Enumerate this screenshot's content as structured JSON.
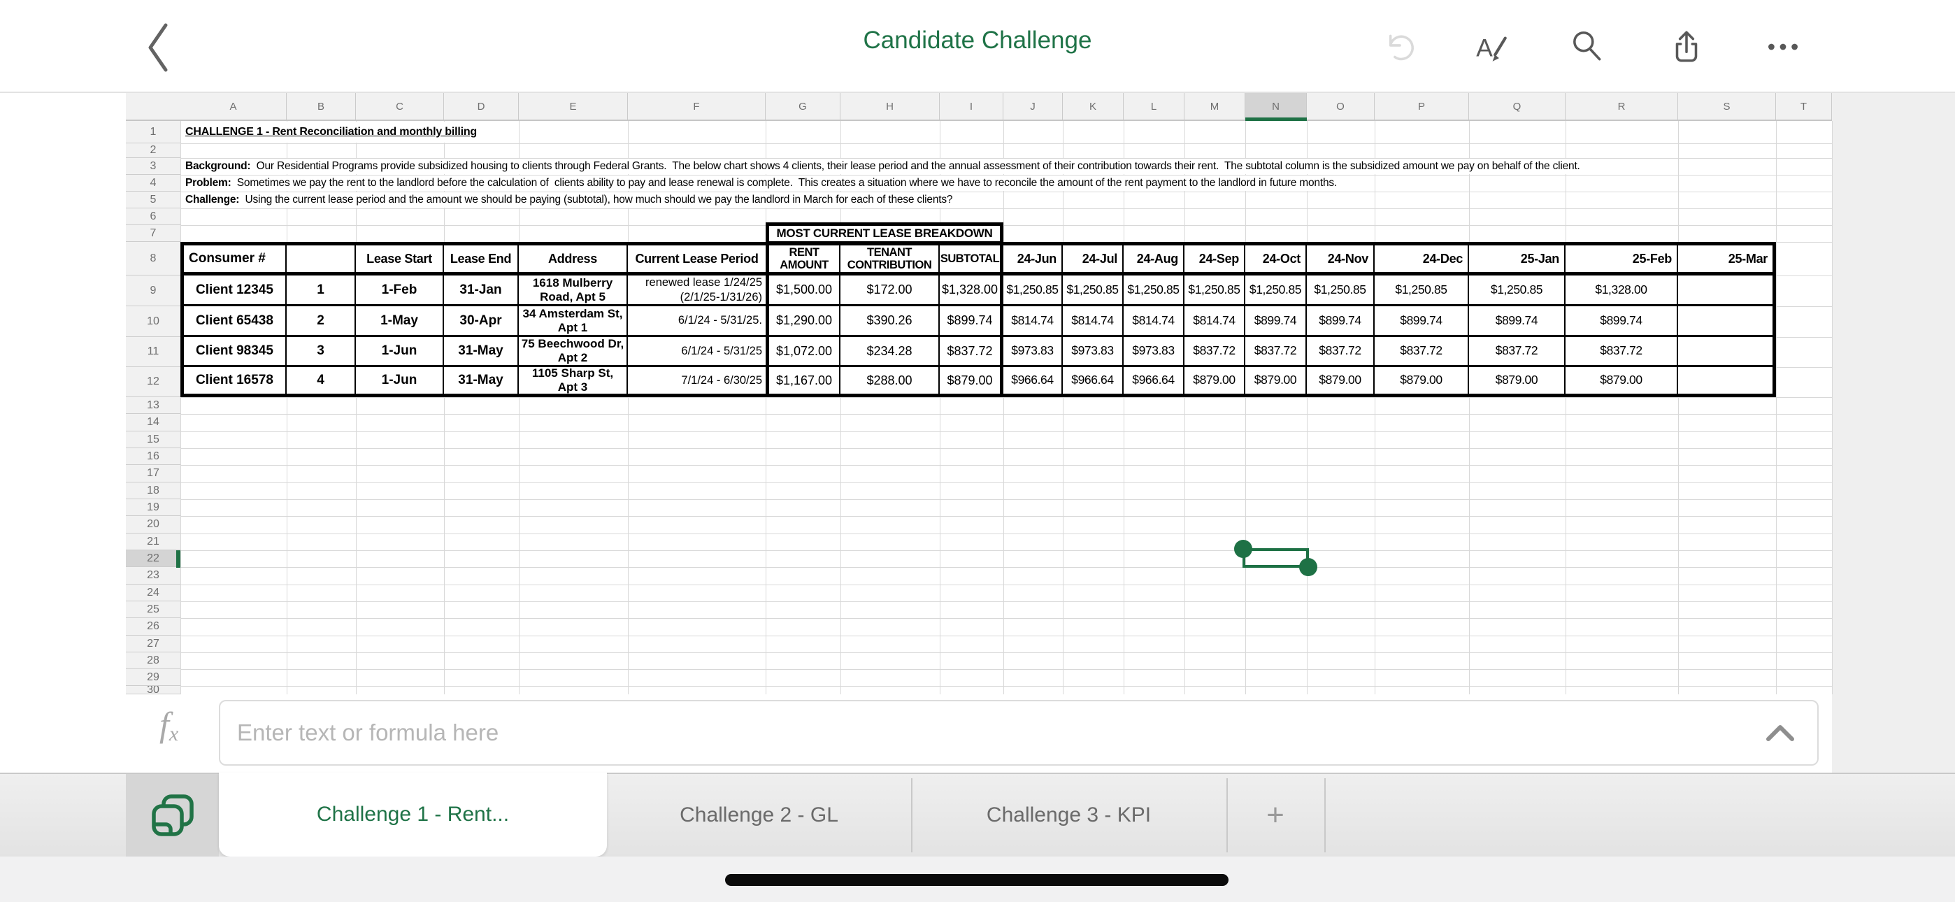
{
  "app": {
    "title": "Candidate Challenge"
  },
  "colors": {
    "accent_green": "#1f7347",
    "selection_green": "#1e7145",
    "header_bg": "#f1f1f1",
    "header_selected_bg": "#d4d4d4",
    "gridline": "#d8d8d8",
    "table_border": "#000000"
  },
  "toolbar": {
    "icons": [
      "back-icon",
      "undo-icon",
      "format-icon",
      "search-icon",
      "share-icon",
      "more-icon"
    ],
    "undo_enabled": false
  },
  "sheet": {
    "column_letters": [
      "A",
      "B",
      "C",
      "D",
      "E",
      "F",
      "G",
      "H",
      "I",
      "J",
      "K",
      "L",
      "M",
      "N",
      "O",
      "P",
      "Q",
      "R",
      "S",
      "T"
    ],
    "row_numbers": [
      1,
      2,
      3,
      4,
      5,
      6,
      7,
      8,
      9,
      10,
      11,
      12,
      13,
      14,
      15,
      16,
      17,
      18,
      19,
      20,
      21,
      22,
      23,
      24,
      25,
      26,
      27,
      28,
      29,
      30
    ],
    "selection": {
      "cell": "N22",
      "column": "N",
      "row": 22
    },
    "notes": [
      {
        "row": 1,
        "style": "title",
        "label": "",
        "text": "CHALLENGE 1 - Rent Reconciliation and monthly billing"
      },
      {
        "row": 3,
        "style": "note",
        "label": "Background:",
        "text": "  Our Residential Programs provide subsidized housing to clients through Federal Grants.  The below chart shows 4 clients, their lease period and the annual assessment of their contribution towards their rent.  The subtotal column is the subsidized amount we pay on behalf of the client."
      },
      {
        "row": 4,
        "style": "note",
        "label": "Problem:",
        "text": "  Sometimes we pay the rent to the landlord before the calculation of  clients ability to pay and lease renewal is complete.  This creates a situation where we have to reconcile the amount of the rent payment to the landlord in future months."
      },
      {
        "row": 5,
        "style": "note",
        "label": "Challenge:",
        "text": "  Using the current lease period and the amount we should be paying (subtotal), how much should we pay the landlord in March for each of these clients?"
      }
    ],
    "table": {
      "breakdown_label": "MOST CURRENT LEASE BREAKDOWN",
      "header_cells": [
        "Consumer #",
        "",
        "Lease Start",
        "Lease End",
        "Address",
        "Current Lease Period",
        "RENT AMOUNT",
        "TENANT CONTRIBUTION",
        "SUBTOTAL"
      ],
      "months": [
        "24-Jun",
        "24-Jul",
        "24-Aug",
        "24-Sep",
        "24-Oct",
        "24-Nov",
        "24-Dec",
        "25-Jan",
        "25-Feb",
        "25-Mar"
      ],
      "clients": [
        {
          "consumer": "Client 12345",
          "num": "1",
          "lease_start": "1-Feb",
          "lease_end": "31-Jan",
          "address": "1618 Mulberry Road, Apt 5",
          "current_lease_period": "renewed lease 1/24/25 (2/1/25-1/31/26)",
          "rent_amount": "$1,500.00",
          "tenant_contribution": "$172.00",
          "subtotal": "$1,328.00",
          "monthly": [
            "$1,250.85",
            "$1,250.85",
            "$1,250.85",
            "$1,250.85",
            "$1,250.85",
            "$1,250.85",
            "$1,250.85",
            "$1,250.85",
            "$1,328.00",
            ""
          ]
        },
        {
          "consumer": "Client 65438",
          "num": "2",
          "lease_start": "1-May",
          "lease_end": "30-Apr",
          "address": "34 Amsterdam St, Apt 1",
          "current_lease_period": "6/1/24 - 5/31/25.",
          "rent_amount": "$1,290.00",
          "tenant_contribution": "$390.26",
          "subtotal": "$899.74",
          "monthly": [
            "$814.74",
            "$814.74",
            "$814.74",
            "$814.74",
            "$899.74",
            "$899.74",
            "$899.74",
            "$899.74",
            "$899.74",
            ""
          ]
        },
        {
          "consumer": "Client 98345",
          "num": "3",
          "lease_start": "1-Jun",
          "lease_end": "31-May",
          "address": "75 Beechwood Dr, Apt 2",
          "current_lease_period": "6/1/24 - 5/31/25",
          "rent_amount": "$1,072.00",
          "tenant_contribution": "$234.28",
          "subtotal": "$837.72",
          "monthly": [
            "$973.83",
            "$973.83",
            "$973.83",
            "$837.72",
            "$837.72",
            "$837.72",
            "$837.72",
            "$837.72",
            "$837.72",
            ""
          ]
        },
        {
          "consumer": "Client 16578",
          "num": "4",
          "lease_start": "1-Jun",
          "lease_end": "31-May",
          "address": "1105 Sharp St, Apt 3",
          "current_lease_period": "7/1/24 - 6/30/25",
          "rent_amount": "$1,167.00",
          "tenant_contribution": "$288.00",
          "subtotal": "$879.00",
          "monthly": [
            "$966.64",
            "$966.64",
            "$966.64",
            "$879.00",
            "$879.00",
            "$879.00",
            "$879.00",
            "$879.00",
            "$879.00",
            ""
          ]
        }
      ]
    }
  },
  "formula_bar": {
    "placeholder": "Enter text or formula here",
    "fx_label": "fx"
  },
  "sheet_tabs": {
    "active": "Challenge 1 - Rent...",
    "others": [
      "Challenge 2 - GL",
      "Challenge 3 - KPI"
    ],
    "add_label": "+"
  }
}
